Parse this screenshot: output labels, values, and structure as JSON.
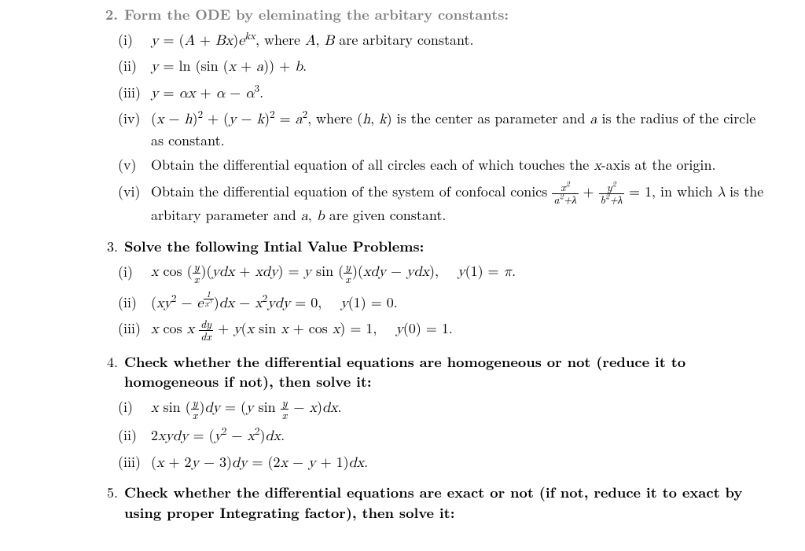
{
  "q2": {
    "num": "2.",
    "title_a": "Form the ODE by eleminating the arbitary constants:",
    "items": [
      {
        "label": "(i)",
        "html": "<span class='math'>y</span> = (<span class='math'>A</span> + <span class='math'>Bx</span>)<span class='math'>e<sup>kx</sup></span>, where <span class='math'>A</span>, <span class='math'>B</span> are arbitary constant."
      },
      {
        "label": "(ii)",
        "html": "<span class='math'>y</span> = <span class='op'>ln</span> (<span class='op'>sin</span> (<span class='math'>x</span> + <span class='math'>a</span>)) + <span class='math'>b</span>."
      },
      {
        "label": "(iii)",
        "html": "<span class='math'>y</span> = <span class='math'>αx</span> + <span class='math'>α</span> − <span class='math'>α</span><sup>3</sup>."
      },
      {
        "label": "(iv)",
        "html": "(<span class='math'>x</span> − <span class='math'>h</span>)<sup>2</sup> + (<span class='math'>y</span> − <span class='math'>k</span>)<sup>2</sup> = <span class='math'>a</span><sup>2</sup>, where (<span class='math'>h</span>, <span class='math'>k</span>) is the center as parameter and <span class='math'>a</span> is the radius of the circle as constant."
      },
      {
        "label": "(v)",
        "html": "Obtain the differential equation of all circles each of which touches the <span class='math'>x</span>-axis at the origin."
      },
      {
        "label": "(vi)",
        "html": "Obtain the differential equation of the system of confocal conics <span class='frac'><span class='fn'>x<sup>2</sup></span><span class='fd'>a<sup>2</sup>+λ</span></span> + <span class='frac'><span class='fn'>y<sup>2</sup></span><span class='fd'>b<sup>2</sup>+λ</span></span> = 1, in which <span class='math'>λ</span> is the arbitary parameter and <span class='math'>a</span>, <span class='math'>b</span> are given constant."
      }
    ]
  },
  "q3": {
    "num": "3.",
    "title": "Solve the following Intial Value Problems:",
    "items": [
      {
        "label": "(i)",
        "html": "<span class='math'>x</span> <span class='op'>cos</span> (<span class='frac'><span class='fn'>y</span><span class='fd'>x</span></span>)(<span class='math'>ydx</span> + <span class='math'>xdy</span>) = <span class='math'>y</span> <span class='op'>sin</span> (<span class='frac'><span class='fn'>y</span><span class='fd'>x</span></span>)(<span class='math'>xdy</span> − <span class='math'>ydx</span>),&nbsp;&nbsp; <span class='math'>y</span>(1) = <span class='math'>π</span>."
      },
      {
        "label": "(ii)",
        "html": "(<span class='math'>xy</span><sup>2</sup> − <span class='math'>e</span><sup><span class='frac' style='font-size:0.85em;'><span class='fn'>1</span><span class='fd'>x<sup>3</sup></span></span></sup>)<span class='math'>dx</span> − <span class='math'>x</span><sup>2</sup><span class='math'>ydy</span> = 0,&nbsp;&nbsp; <span class='math'>y</span>(1) = 0."
      },
      {
        "label": "(iii)",
        "html": "<span class='math'>x</span> <span class='op'>cos</span> <span class='math'>x</span> <span class='frac'><span class='fn'>dy</span><span class='fd'>dx</span></span> + <span class='math'>y</span>(<span class='math'>x</span> <span class='op'>sin</span> <span class='math'>x</span> + <span class='op'>cos</span> <span class='math'>x</span>) = 1,&nbsp;&nbsp; <span class='math'>y</span>(0) = 1."
      }
    ]
  },
  "q4": {
    "num": "4.",
    "title": "Check whether the differential equations are homogeneous or not (reduce it to homogeneous if not), then solve it:",
    "items": [
      {
        "label": "(i)",
        "html": "<span class='math'>x</span> <span class='op'>sin</span> (<span class='frac'><span class='fn'>y</span><span class='fd'>x</span></span>)<span class='math'>dy</span> = (<span class='math'>y</span> <span class='op'>sin</span> <span class='frac'><span class='fn'>y</span><span class='fd'>x</span></span> − <span class='math'>x</span>)<span class='math'>dx</span>."
      },
      {
        "label": "(ii)",
        "html": "2<span class='math'>xydy</span> = (<span class='math'>y</span><sup>2</sup> − <span class='math'>x</span><sup>2</sup>)<span class='math'>dx</span>."
      },
      {
        "label": "(iii)",
        "html": "(<span class='math'>x</span> + 2<span class='math'>y</span> − 3)<span class='math'>dy</span> = (2<span class='math'>x</span> − <span class='math'>y</span> + 1)<span class='math'>dx</span>."
      }
    ]
  },
  "q5": {
    "num": "5.",
    "title": "Check whether the differential equations are exact or not (if not, reduce it to exact by using proper Integrating factor), then solve it:"
  }
}
